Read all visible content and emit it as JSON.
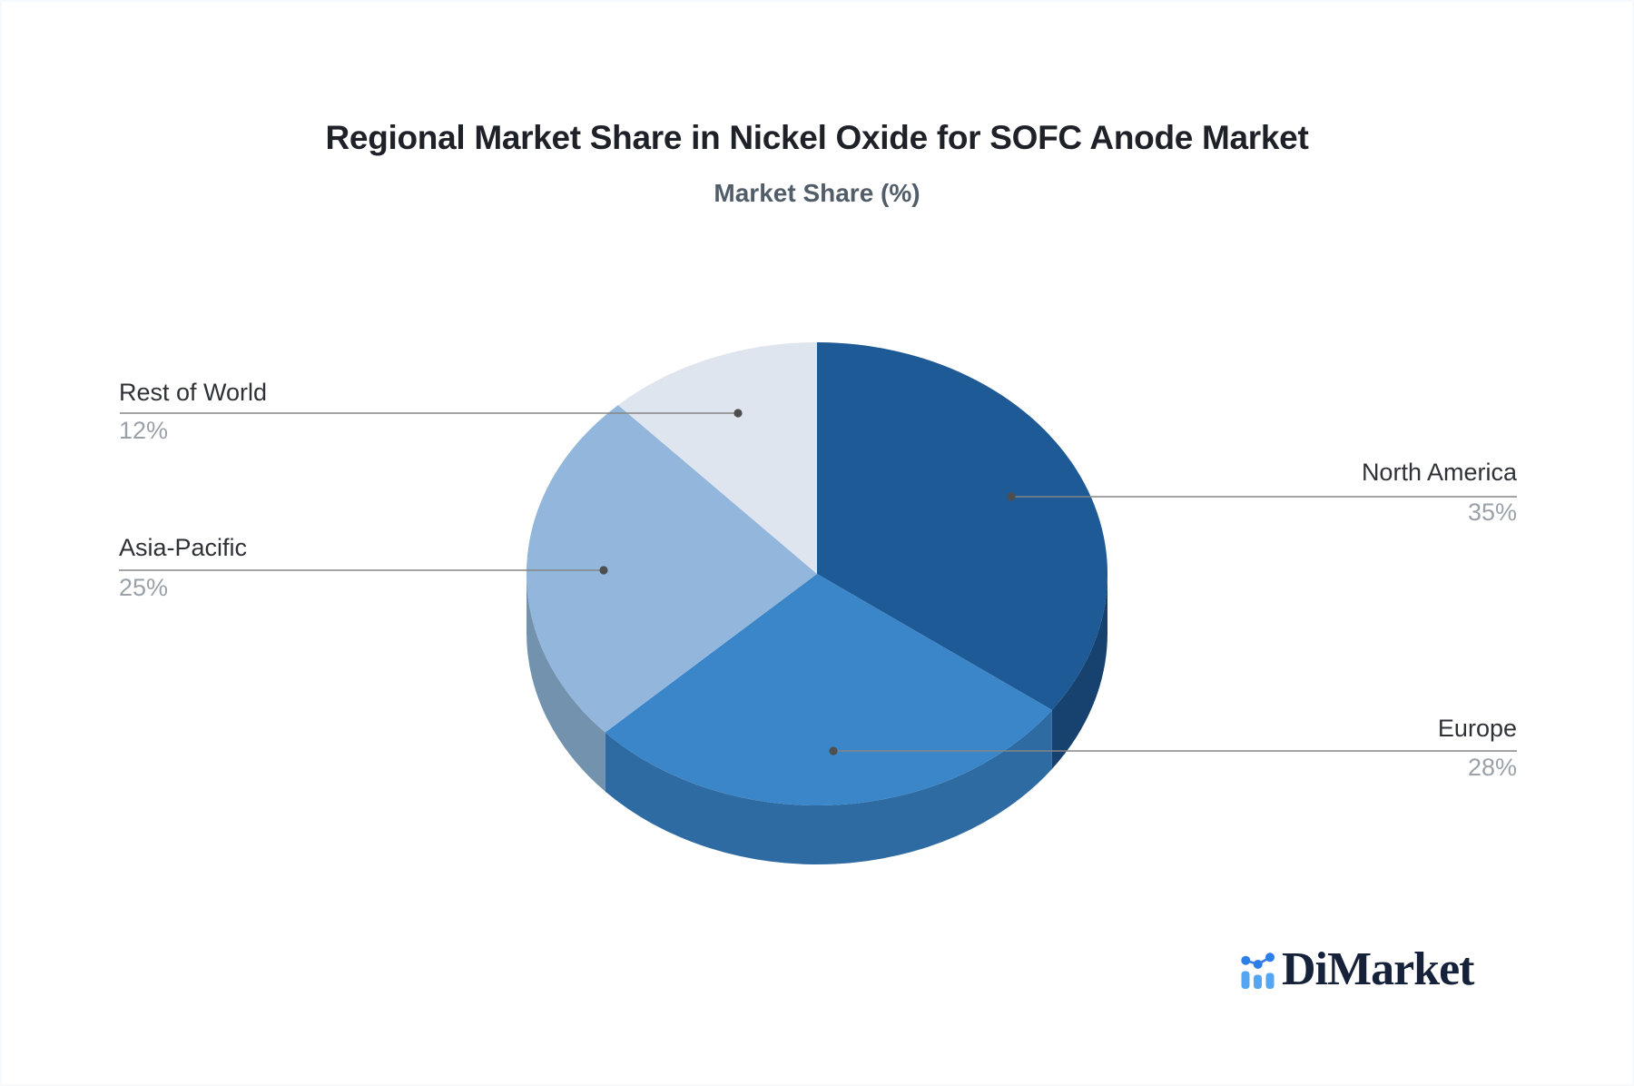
{
  "title": "Regional Market Share in Nickel Oxide for SOFC Anode Market",
  "subtitle": "Market Share (%)",
  "chart_data": {
    "type": "pie",
    "style": "3d",
    "title": "Regional Market Share in Nickel Oxide for SOFC Anode Market",
    "subtitle": "Market Share (%)",
    "unit": "%",
    "direction": "clockwise",
    "start_angle": "12-oclock",
    "legend": "callout-labels",
    "categories": [
      "North America",
      "Europe",
      "Asia-Pacific",
      "Rest of World"
    ],
    "values": [
      35,
      28,
      25,
      12
    ],
    "series": [
      {
        "label": "North America",
        "value": 35,
        "pct_label": "35%",
        "color": "#1e5a96",
        "side_color": "#17426f",
        "callout_side": "right"
      },
      {
        "label": "Europe",
        "value": 28,
        "pct_label": "28%",
        "color": "#3a86c8",
        "side_color": "#2e6ba3",
        "callout_side": "right"
      },
      {
        "label": "Asia-Pacific",
        "value": 25,
        "pct_label": "25%",
        "color": "#93b7dc",
        "side_color": "#7392ae",
        "callout_side": "left"
      },
      {
        "label": "Rest of World",
        "value": 12,
        "pct_label": "12%",
        "color": "#dfe5ef",
        "side_color": "#c2cbd9",
        "callout_side": "left"
      }
    ],
    "leader_line_color": "#858585",
    "label_color": "#2e3237",
    "pct_label_color": "#9aa1a9"
  },
  "watermark": {
    "text": "DiMarket",
    "text_color": "#16213a",
    "icon_bar_color": "#54a5f2",
    "icon_dot_color": "#2d7ee8"
  }
}
